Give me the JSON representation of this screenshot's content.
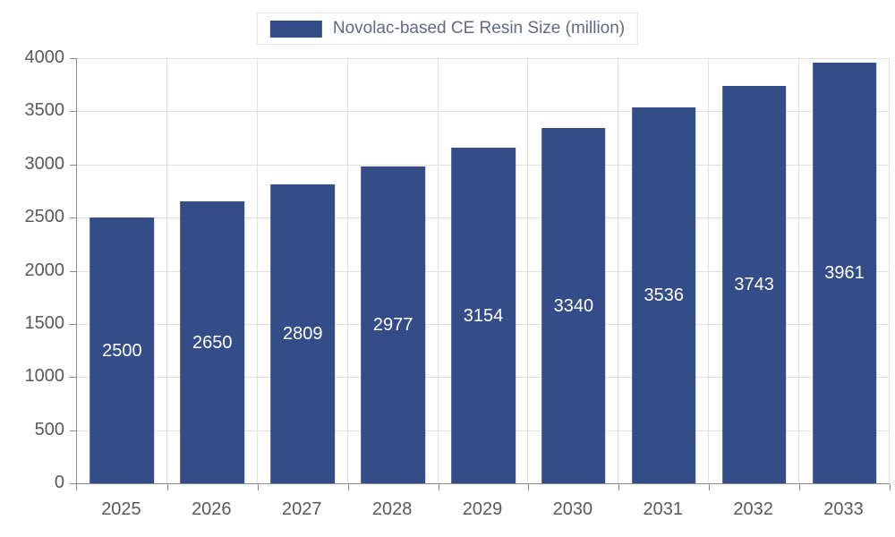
{
  "chart_data": {
    "type": "bar",
    "title": "",
    "legend": "Novolac-based CE Resin Size (million)",
    "categories": [
      "2025",
      "2026",
      "2027",
      "2028",
      "2029",
      "2030",
      "2031",
      "2032",
      "2033"
    ],
    "series": [
      {
        "name": "Novolac-based CE Resin Size (million)",
        "values": [
          2500,
          2650,
          2809,
          2977,
          3154,
          3340,
          3536,
          3743,
          3961
        ]
      }
    ],
    "xlabel": "",
    "ylabel": "",
    "ylim": [
      0,
      4000
    ],
    "ytick_step": 500,
    "grid": true,
    "legend_position": "top-center",
    "value_labels": "inside-middle",
    "colors": {
      "bar": "#344C87",
      "value_label_text": "#ffffff",
      "axis_text": "#595959",
      "legend_text": "#5f6b85",
      "grid_line": "#e0e0e0",
      "axis_line": "#8a8a8a",
      "legend_border": "#e3e3e3",
      "background": "#ffffff"
    }
  }
}
